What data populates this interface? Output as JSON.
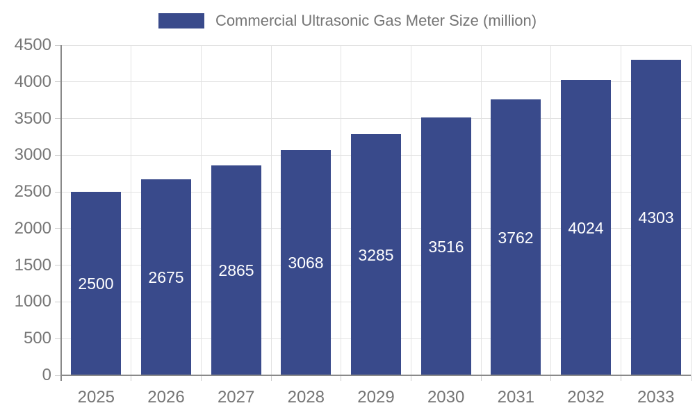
{
  "chart_data": {
    "type": "bar",
    "title": "Commercial Ultrasonic Gas Meter Size (million)",
    "categories": [
      "2025",
      "2026",
      "2027",
      "2028",
      "2029",
      "2030",
      "2031",
      "2032",
      "2033"
    ],
    "values": [
      2500,
      2675,
      2865,
      3068,
      3285,
      3516,
      3762,
      4024,
      4303
    ],
    "xlabel": "",
    "ylabel": "",
    "ylim": [
      0,
      4500
    ],
    "ytick_step": 500,
    "ytick_labels": [
      "0",
      "500",
      "1000",
      "1500",
      "2000",
      "2500",
      "3000",
      "3500",
      "4000",
      "4500"
    ],
    "grid": true,
    "legend_position": "top-center",
    "colors": {
      "bar": "#394A8B",
      "value_label": "#FFFFFF",
      "axis_text": "#757575",
      "grid_line": "#E2E2E2",
      "tick_line": "#CCCCCC",
      "axis_line": "#898989",
      "background": "#FFFFFF"
    }
  }
}
